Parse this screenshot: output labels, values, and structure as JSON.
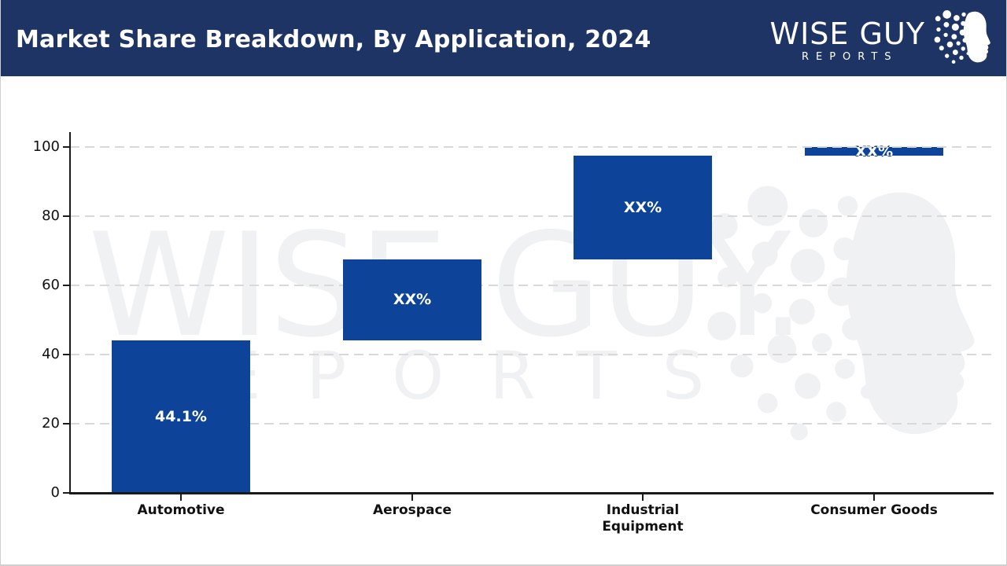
{
  "header": {
    "title": "Market Share Breakdown, By Application, 2024",
    "bg_color": "#1e3464",
    "logo": {
      "line1": "WISE GUY",
      "line2": "REPORTS"
    }
  },
  "watermark": {
    "line1": "WISE GUY.",
    "line2": "REPORTS"
  },
  "chart_data": {
    "type": "bar",
    "subtype": "waterfall",
    "title": "Market Share Breakdown, By Application, 2024",
    "categories": [
      "Automotive",
      "Aerospace",
      "Industrial Equipment",
      "Consumer Goods"
    ],
    "segments": [
      {
        "category": "Automotive",
        "start": 0,
        "end": 44.1,
        "label": "44.1%"
      },
      {
        "category": "Aerospace",
        "start": 44.1,
        "end": 67.5,
        "label": "XX%"
      },
      {
        "category": "Industrial Equipment",
        "start": 67.5,
        "end": 97.5,
        "label": "XX%"
      },
      {
        "category": "Consumer Goods",
        "start": 97.5,
        "end": 100,
        "label": "XX%"
      }
    ],
    "ylabel": "",
    "xlabel": "",
    "ylim": [
      0,
      100
    ],
    "yticks": [
      0,
      20,
      40,
      60,
      80,
      100
    ],
    "grid": "horizontal-dashed",
    "legend": "none",
    "bar_color": "#0d4398",
    "bar_label_color": "#ffffff",
    "unit": "%"
  }
}
